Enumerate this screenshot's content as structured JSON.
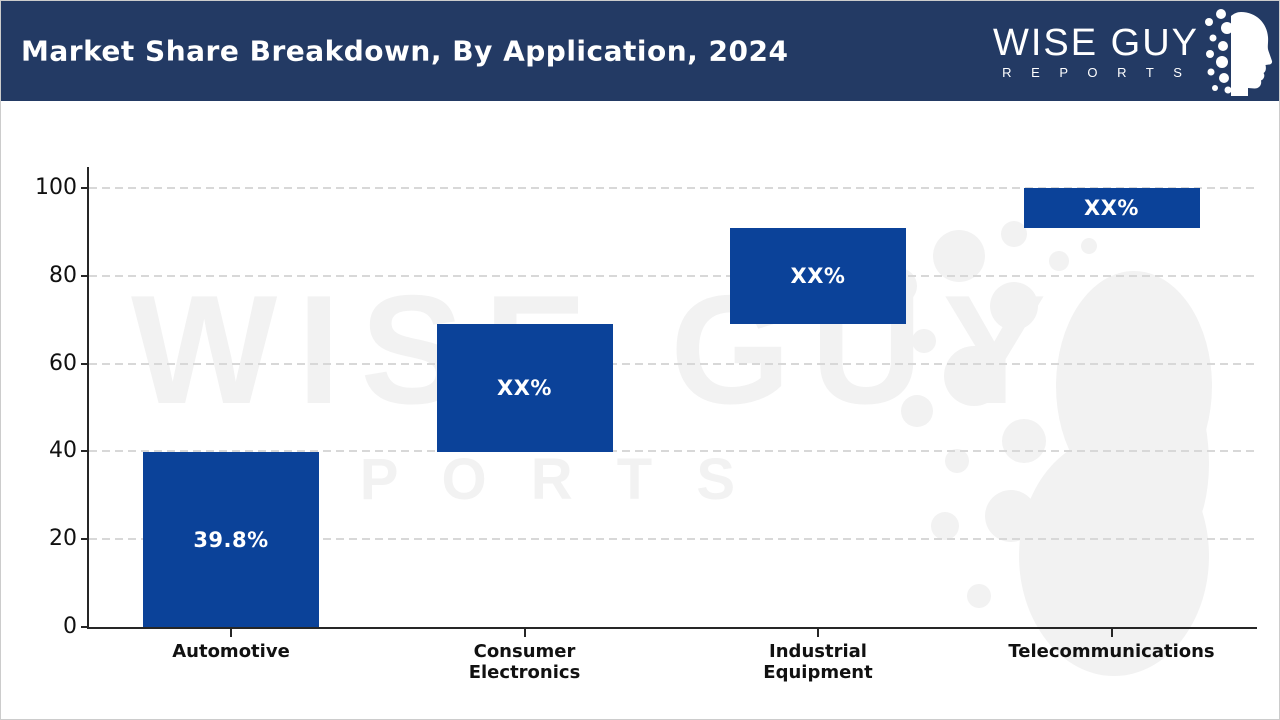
{
  "header": {
    "title": "Market Share Breakdown, By Application, 2024",
    "logo": {
      "name": "WISE GUY",
      "sub": "R E P O R T S"
    }
  },
  "watermark": {
    "text": "WISE GUY",
    "subtext": "R E P O R T S"
  },
  "colors": {
    "header_bg": "#233a64",
    "bar": "#0b4299",
    "grid": "#d8d8d8",
    "axis": "#262626",
    "bar_label": "#ffffff",
    "watermark": "#f2f2f2"
  },
  "chart_data": {
    "type": "bar",
    "subtype": "waterfall",
    "title": "Market Share Breakdown, By Application, 2024",
    "categories": [
      "Automotive",
      "Consumer Electronics",
      "Industrial Equipment",
      "Telecommunications"
    ],
    "category_lines": [
      [
        "Automotive"
      ],
      [
        "Consumer",
        "Electronics"
      ],
      [
        "Industrial",
        "Equipment"
      ],
      [
        "Telecommunications"
      ]
    ],
    "segments": [
      {
        "category": "Automotive",
        "start": 0,
        "end": 39.8,
        "label": "39.8%"
      },
      {
        "category": "Consumer Electronics",
        "start": 39.8,
        "end": 69.1,
        "label": "XX%"
      },
      {
        "category": "Industrial Equipment",
        "start": 69.1,
        "end": 90.9,
        "label": "XX%"
      },
      {
        "category": "Telecommunications",
        "start": 90.9,
        "end": 100,
        "label": "XX%"
      }
    ],
    "ylim": [
      0,
      100
    ],
    "yticks": [
      0,
      20,
      40,
      60,
      80,
      100
    ],
    "xlabel": "",
    "ylabel": "",
    "grid": "horizontal-dashed",
    "legend": null
  }
}
